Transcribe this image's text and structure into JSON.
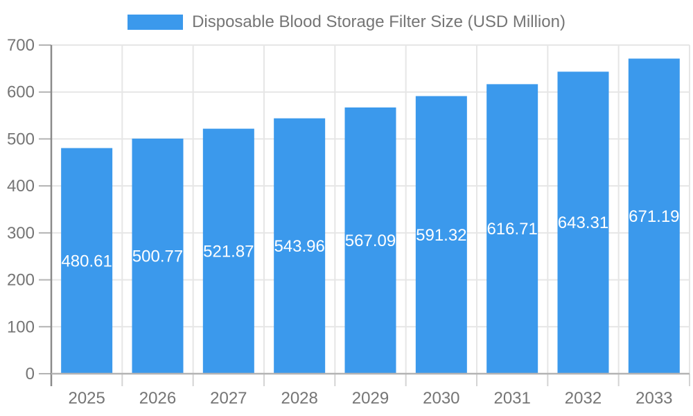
{
  "chart_data": {
    "type": "bar",
    "title": "Disposable Blood Storage Filter Size (USD Million)",
    "legend": [
      "Disposable Blood Storage Filter Size (USD Million)"
    ],
    "legend_position": "top",
    "categories": [
      "2025",
      "2026",
      "2027",
      "2028",
      "2029",
      "2030",
      "2031",
      "2032",
      "2033"
    ],
    "values": [
      480.61,
      500.77,
      521.87,
      543.96,
      567.09,
      591.32,
      616.71,
      643.31,
      671.19
    ],
    "value_labels": [
      "480.61",
      "500.77",
      "521.87",
      "543.96",
      "567.09",
      "591.32",
      "616.71",
      "643.31",
      "671.19"
    ],
    "xlabel": "",
    "ylabel": "",
    "ylim": [
      0,
      700
    ],
    "yticks": [
      0,
      100,
      200,
      300,
      400,
      500,
      600,
      700
    ],
    "grid": true,
    "bar_color": "#3B99EC",
    "value_label_color": "#ffffff",
    "text_color": "#757575",
    "grid_color": "#e6e6e6",
    "axis_line_color": "#8a8a8a",
    "baseline_color": "#b3b3b3",
    "tick_color": "#b3b3b3",
    "x_tick_color": "#d4d4d4"
  }
}
